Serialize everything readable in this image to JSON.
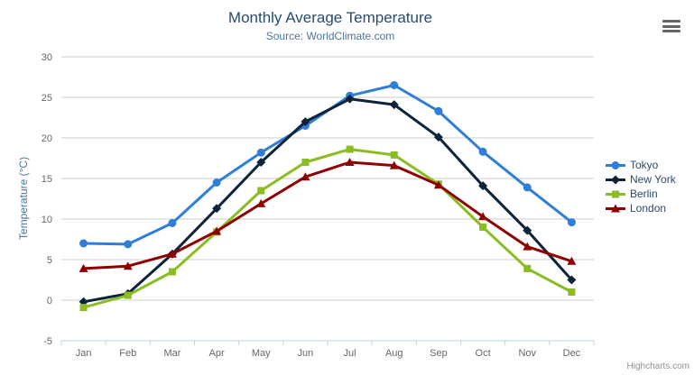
{
  "credits": "Highcharts.com",
  "icons": {
    "export_menu": "hamburger-icon"
  },
  "chart_data": {
    "type": "line",
    "title": "Monthly Average Temperature",
    "subtitle": "Source: WorldClimate.com",
    "xlabel": "",
    "ylabel": "Temperature (°C)",
    "categories": [
      "Jan",
      "Feb",
      "Mar",
      "Apr",
      "May",
      "Jun",
      "Jul",
      "Aug",
      "Sep",
      "Oct",
      "Nov",
      "Dec"
    ],
    "ylim": [
      -5,
      30
    ],
    "ytick_step": 5,
    "grid": true,
    "legend_position": "right",
    "series": [
      {
        "name": "Tokyo",
        "color": "#2f7ed8",
        "marker": "circle",
        "values": [
          7.0,
          6.9,
          9.5,
          14.5,
          18.2,
          21.5,
          25.2,
          26.5,
          23.3,
          18.3,
          13.9,
          9.6
        ]
      },
      {
        "name": "New York",
        "color": "#0d233a",
        "marker": "diamond",
        "values": [
          -0.2,
          0.8,
          5.7,
          11.3,
          17.0,
          22.0,
          24.8,
          24.1,
          20.1,
          14.1,
          8.6,
          2.5
        ]
      },
      {
        "name": "Berlin",
        "color": "#8bbc21",
        "marker": "square",
        "values": [
          -0.9,
          0.6,
          3.5,
          8.4,
          13.5,
          17.0,
          18.6,
          17.9,
          14.3,
          9.0,
          3.9,
          1.0
        ]
      },
      {
        "name": "London",
        "color": "#910000",
        "marker": "triangle",
        "values": [
          3.9,
          4.2,
          5.7,
          8.5,
          11.9,
          15.2,
          17.0,
          16.6,
          14.2,
          10.3,
          6.6,
          4.8
        ]
      }
    ]
  }
}
